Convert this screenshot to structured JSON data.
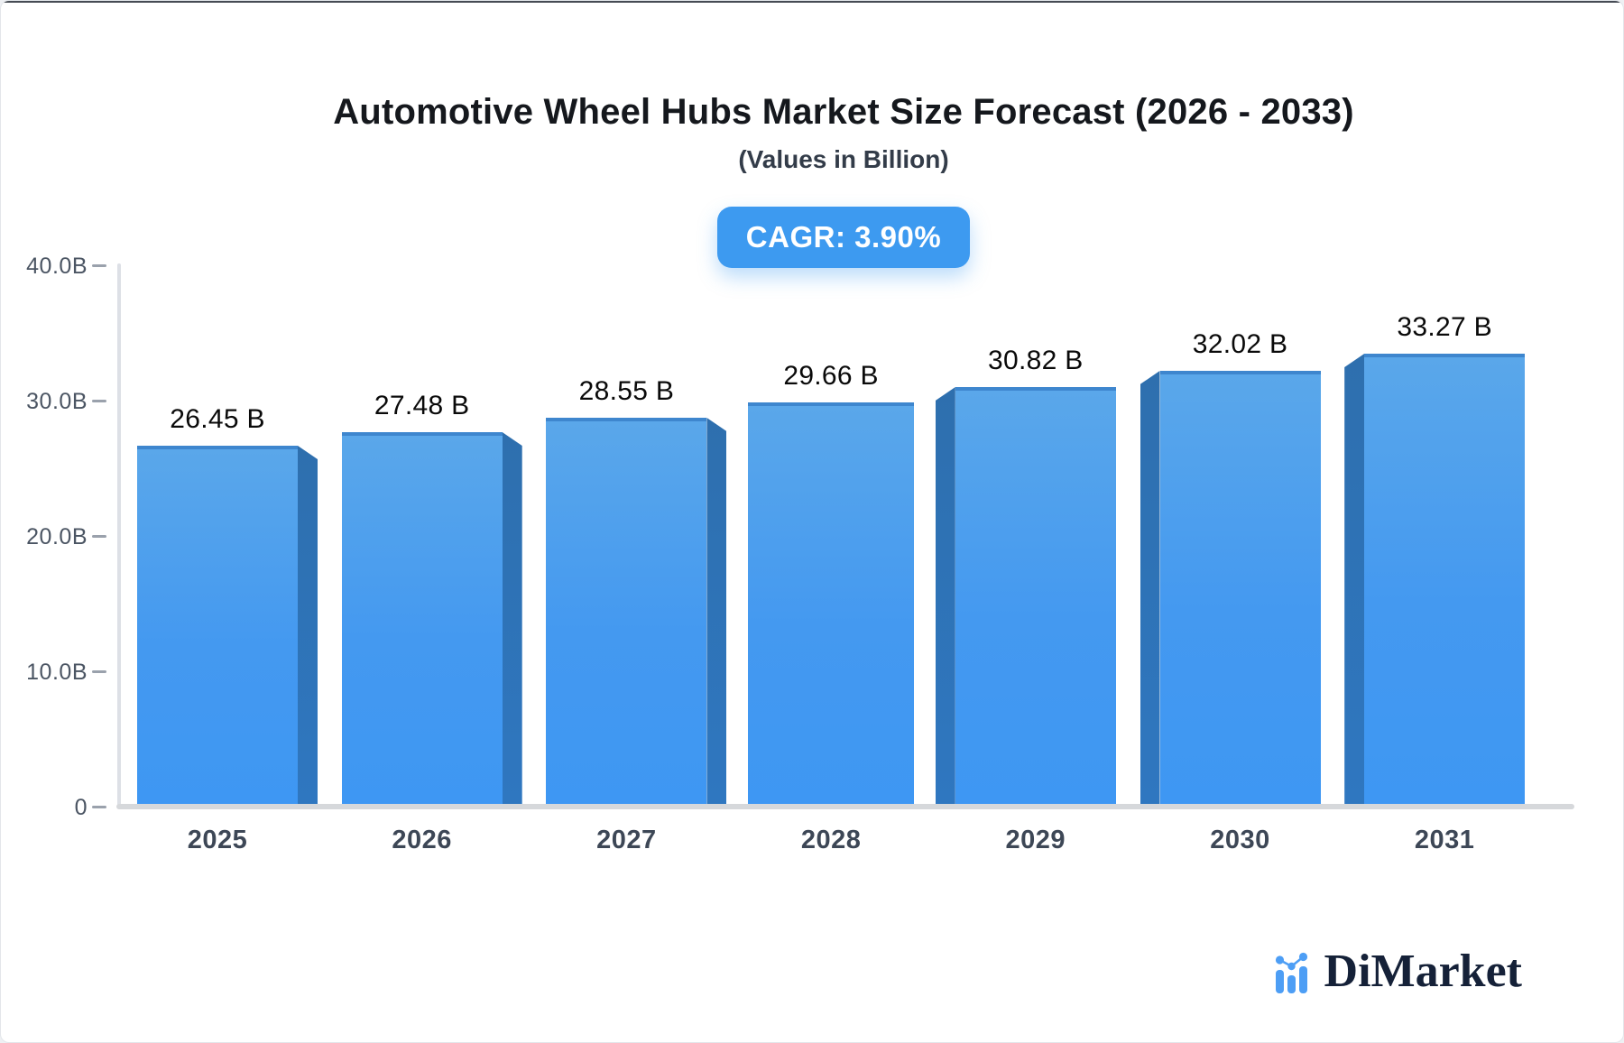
{
  "header": {
    "title": "Automotive Wheel Hubs Market Size Forecast (2026 - 2033)",
    "subtitle": "(Values in Billion)",
    "cagr_badge": {
      "label": "CAGR: 3.90%",
      "bg_color": "#3D9AF0",
      "text_color": "#ffffff"
    }
  },
  "chart_data": {
    "type": "bar",
    "title": "Automotive Wheel Hubs Market Size Forecast (2026 - 2033)",
    "subtitle": "(Values in Billion)",
    "categories": [
      "2025",
      "2026",
      "2027",
      "2028",
      "2029",
      "2030",
      "2031"
    ],
    "values": [
      26.45,
      27.48,
      28.55,
      29.66,
      30.82,
      32.02,
      33.27
    ],
    "value_labels": [
      "26.45 B",
      "27.48 B",
      "28.55 B",
      "29.66 B",
      "30.82 B",
      "32.02 B",
      "33.27 B"
    ],
    "unit": "Billion",
    "cagr": "3.90%",
    "ylim": [
      0,
      40
    ],
    "ytick_values": [
      0,
      10,
      20,
      30,
      40
    ],
    "ytick_labels": [
      "0",
      "10.0B",
      "20.0B",
      "30.0B",
      "40.0B"
    ],
    "grid": "off",
    "legend": "none",
    "bar_color": "#4499F0",
    "bar_side_color": "#2F74BB",
    "bar_effect": "3d-bevel, bevel faces outward from center bar"
  },
  "footer": {
    "logo_text": "DiMarket",
    "logo_icon": "bar-chart-sparkline-logo-icon",
    "logo_text_color": "#152138",
    "logo_accent_color": "#4D9EF5"
  }
}
